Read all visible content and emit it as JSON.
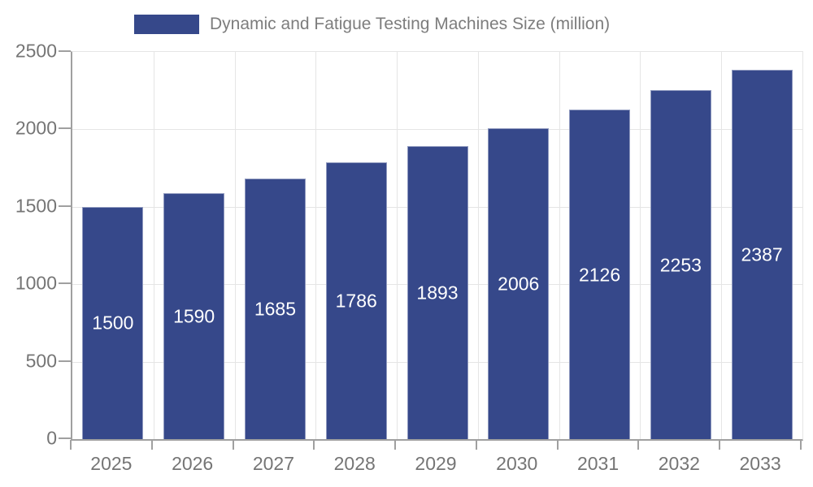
{
  "chart_data": {
    "type": "bar",
    "title": "Dynamic and Fatigue Testing Machines Size (million)",
    "legend": [
      "Dynamic and Fatigue Testing Machines Size (million)"
    ],
    "legend_position": "top-center",
    "categories": [
      "2025",
      "2026",
      "2027",
      "2028",
      "2029",
      "2030",
      "2031",
      "2032",
      "2033"
    ],
    "values": [
      1500,
      1590,
      1685,
      1786,
      1893,
      2006,
      2126,
      2253,
      2387
    ],
    "data_labels": [
      "1500",
      "1590",
      "1685",
      "1786",
      "1893",
      "2006",
      "2126",
      "2253",
      "2387"
    ],
    "xlabel": "",
    "ylabel": "",
    "ylim": [
      0,
      2500
    ],
    "yticks": [
      0,
      500,
      1000,
      1500,
      2000,
      2500
    ],
    "grid": true
  },
  "colors": {
    "bar_fill": "#36488A",
    "bar_border": "rgba(255,255,255,0.45)",
    "bar_label_text": "#ffffff",
    "axis_line": "#a0a0a0",
    "gridline": "#e5e5e5",
    "tick_label_text": "#757575",
    "legend_text": "#7d7d7d",
    "background": "#ffffff"
  }
}
